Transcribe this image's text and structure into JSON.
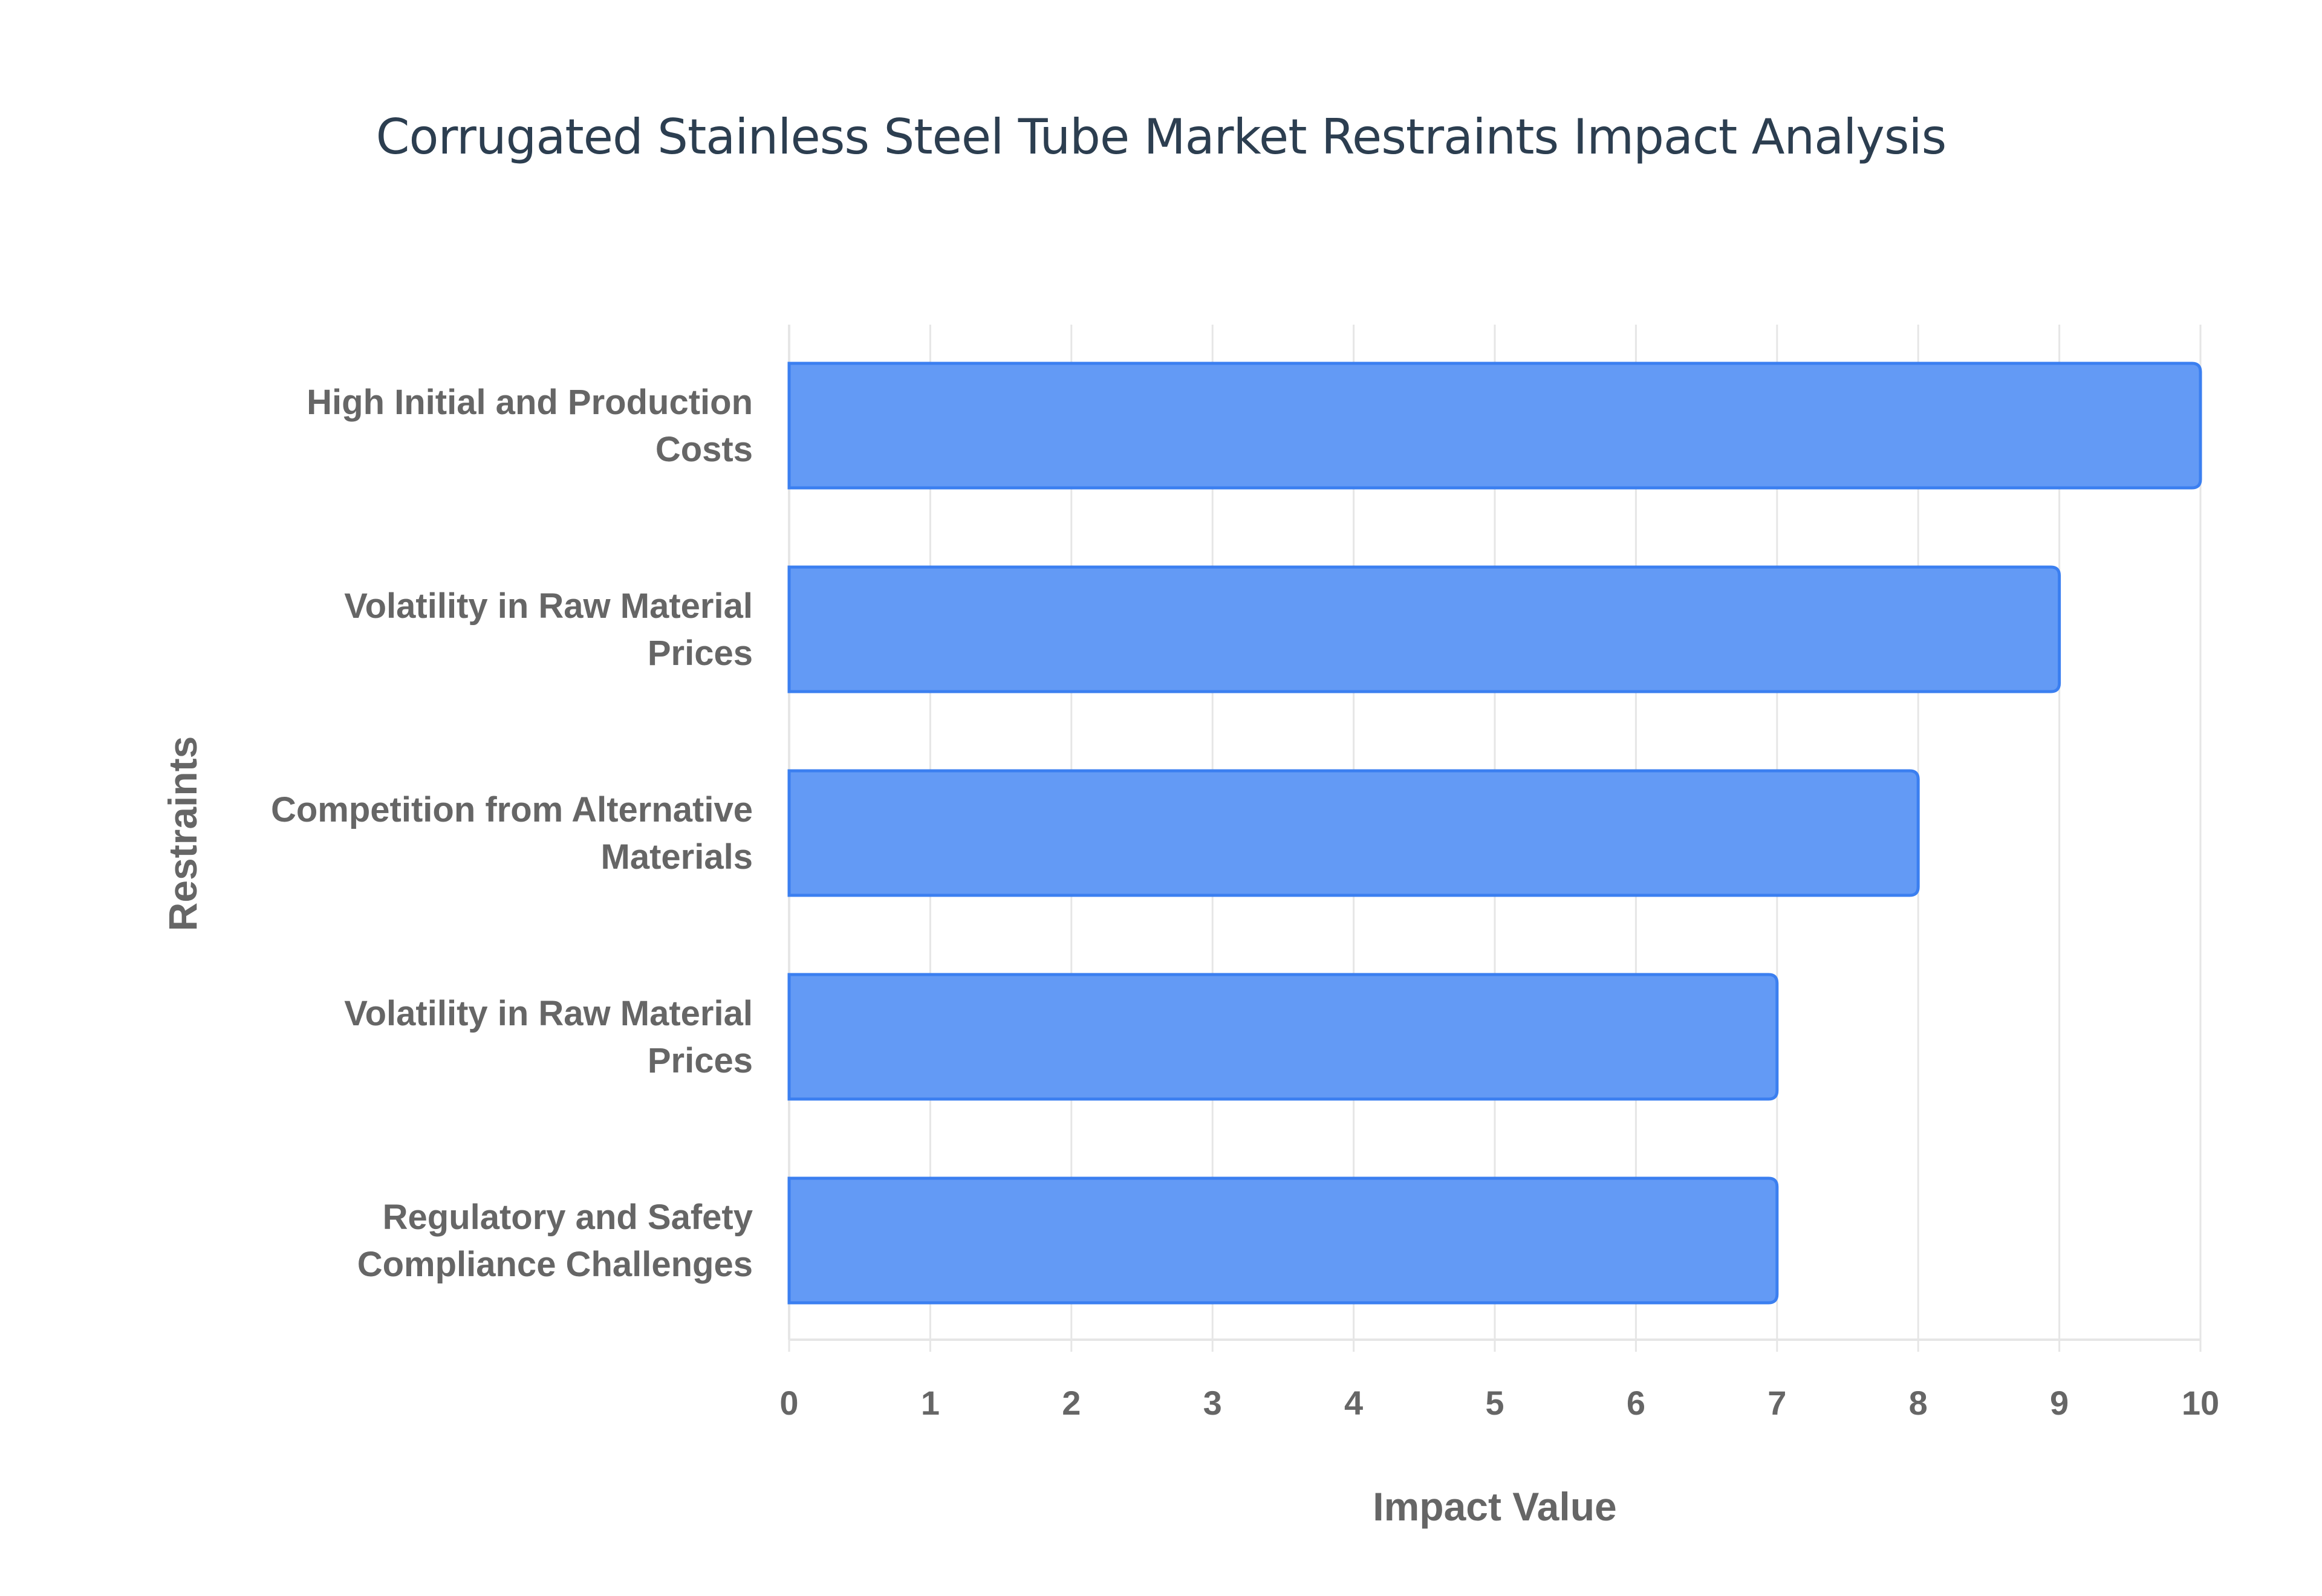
{
  "chart_data": {
    "type": "bar",
    "orientation": "horizontal",
    "title": "Corrugated Stainless Steel Tube Market Restraints Impact Analysis",
    "xlabel": "Impact Value",
    "ylabel": "Restraints",
    "categories": [
      [
        "High Initial and Production",
        "Costs"
      ],
      [
        "Volatility in Raw Material",
        "Prices"
      ],
      [
        "Competition from Alternative",
        "Materials"
      ],
      [
        "Volatility in Raw Material",
        "Prices"
      ],
      [
        "Regulatory and Safety",
        "Compliance Challenges"
      ]
    ],
    "values": [
      10,
      9,
      8,
      7,
      7
    ],
    "xlim": [
      0,
      10
    ],
    "xticks": [
      "0",
      "1",
      "2",
      "3",
      "4",
      "5",
      "6",
      "7",
      "8",
      "9",
      "10"
    ],
    "grid": true,
    "legend": "none",
    "colors": {
      "bar_fill": "#639af5",
      "bar_border": "#3b7ff0",
      "grid": "#e6e6e6",
      "text": "#666666",
      "title": "#2c3e50"
    }
  }
}
